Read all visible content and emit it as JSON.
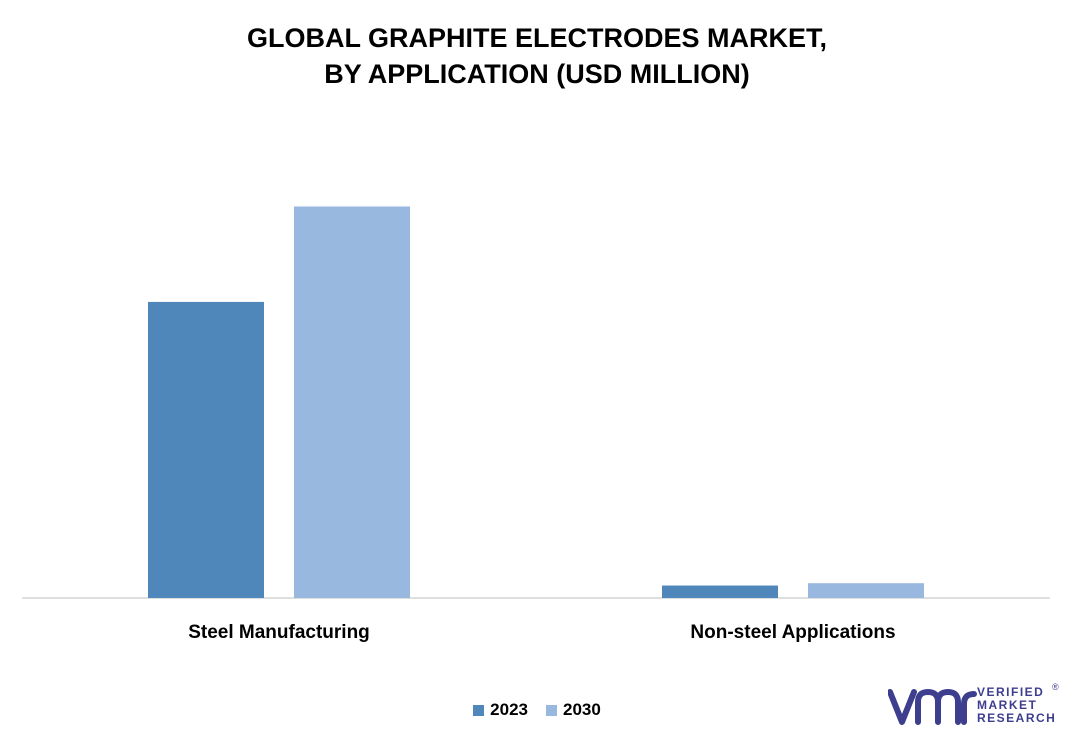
{
  "title_line1": "GLOBAL GRAPHITE ELECTRODES MARKET,",
  "title_line2": "BY APPLICATION (USD MILLION)",
  "chart_data": {
    "type": "bar",
    "categories": [
      "Steel Manufacturing",
      "Non-steel Applications"
    ],
    "series": [
      {
        "name": "2023",
        "values": [
          7600,
          320
        ],
        "color": "#4f87bb"
      },
      {
        "name": "2030",
        "values": [
          10050,
          380
        ],
        "color": "#98b8e0"
      }
    ],
    "ylim": [
      0,
      11500
    ],
    "yaxis_visible": false,
    "grid": false,
    "legend": "bottom-center"
  },
  "logo": {
    "line1": "VERIFIED",
    "line2": "MARKET",
    "line3": "RESEARCH",
    "mark": "vmr-logo",
    "registered": "®",
    "color": "#3d3e8e"
  }
}
